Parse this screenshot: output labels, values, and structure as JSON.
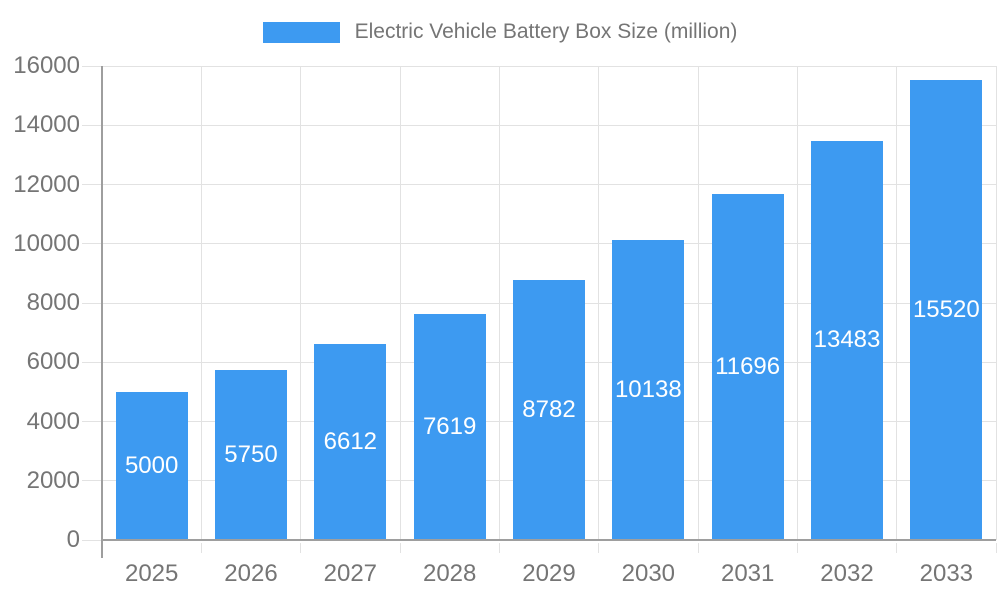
{
  "legend": {
    "label": "Electric Vehicle Battery Box Size (million)",
    "swatch_color": "#3D9AF1"
  },
  "chart_data": {
    "type": "bar",
    "title": "Electric Vehicle Battery Box Size (million)",
    "categories": [
      "2025",
      "2026",
      "2027",
      "2028",
      "2029",
      "2030",
      "2031",
      "2032",
      "2033"
    ],
    "values": [
      5000,
      5750,
      6612,
      7619,
      8782,
      10138,
      11696,
      13483,
      15520
    ],
    "bar_value_labels": [
      "5000",
      "5750",
      "6612",
      "7619",
      "8782",
      "10138",
      "11696",
      "13483",
      "15520"
    ],
    "xlabel": "",
    "ylabel": "",
    "ylim": [
      0,
      16000
    ],
    "yticks": [
      0,
      2000,
      4000,
      6000,
      8000,
      10000,
      12000,
      14000,
      16000
    ],
    "ytick_labels": [
      "0",
      "2000",
      "4000",
      "6000",
      "8000",
      "10000",
      "12000",
      "14000",
      "16000"
    ],
    "grid": true,
    "legend_position": "top-center",
    "value_label_position": "center-of-bar",
    "colors": {
      "bar": "#3D9AF1",
      "bar_label_text": "#FFFFFF",
      "axis_text": "#757575",
      "grid_line": "#E2E2E2",
      "axis_line": "#9E9E9E",
      "background": "#FFFFFF"
    }
  }
}
